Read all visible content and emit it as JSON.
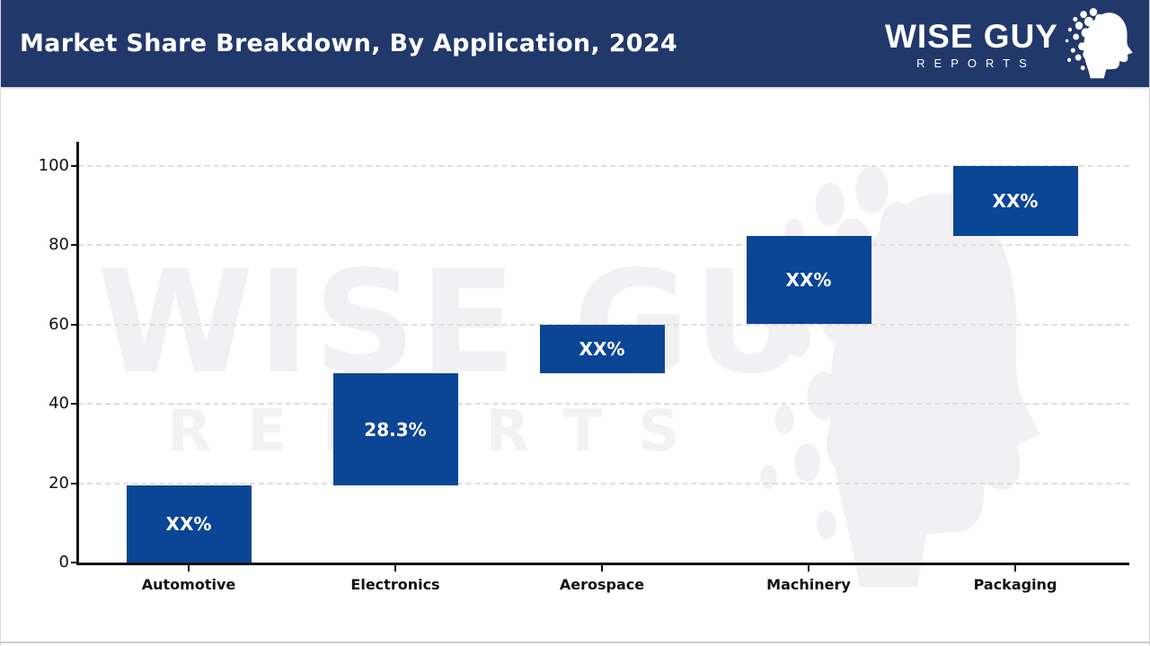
{
  "header": {
    "title": "Market Share Breakdown, By Application, 2024",
    "logo": {
      "line1": "WISE GUY",
      "line2": "REPORTS"
    }
  },
  "watermark": {
    "line1": "WISE GUY",
    "line2": "REPORTS"
  },
  "colors": {
    "header_bg": "#21386b",
    "bar": "#0b4596",
    "bar_label": "#ffffff",
    "grid": "#dedede",
    "axis": "#111111",
    "watermark": "#f1f1f4"
  },
  "chart_data": {
    "type": "bar",
    "subtype": "waterfall",
    "title": "Market Share Breakdown, By Application, 2024",
    "categories": [
      "Automotive",
      "Electronics",
      "Aerospace",
      "Machinery",
      "Packaging"
    ],
    "segments": [
      {
        "category": "Automotive",
        "start": 0,
        "end": 19.4,
        "value": 19.4,
        "label": "XX%"
      },
      {
        "category": "Electronics",
        "start": 19.4,
        "end": 47.7,
        "value": 28.3,
        "label": "28.3%"
      },
      {
        "category": "Aerospace",
        "start": 47.7,
        "end": 60,
        "value": 12.3,
        "label": "XX%"
      },
      {
        "category": "Machinery",
        "start": 60,
        "end": 82.3,
        "value": 22.3,
        "label": "XX%"
      },
      {
        "category": "Packaging",
        "start": 82.3,
        "end": 100,
        "value": 17.7,
        "label": "XX%"
      }
    ],
    "yticks": [
      0,
      20,
      40,
      60,
      80,
      100
    ],
    "ylim": [
      0,
      105
    ],
    "xlabel": "",
    "ylabel": "",
    "grid": "horizontal-dashed",
    "legend": "none"
  }
}
